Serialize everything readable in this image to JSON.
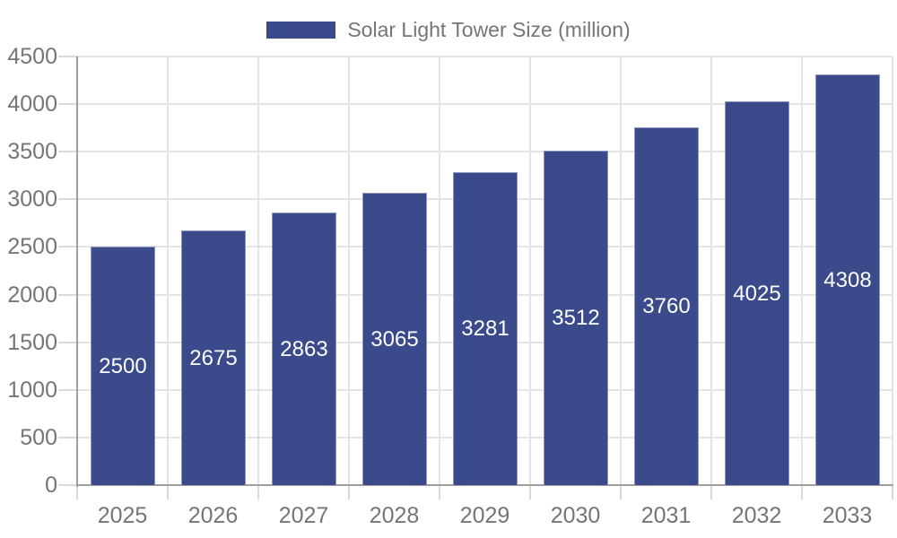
{
  "legend": {
    "items": [
      {
        "label": "Solar Light Tower Size (million)",
        "swatch_color": "#3A4A8B"
      }
    ]
  },
  "chart_data": {
    "type": "bar",
    "title": "",
    "xlabel": "",
    "ylabel": "",
    "categories": [
      "2025",
      "2026",
      "2027",
      "2028",
      "2029",
      "2030",
      "2031",
      "2032",
      "2033"
    ],
    "series": [
      {
        "name": "Solar Light Tower Size (million)",
        "values": [
          2500,
          2675,
          2863,
          3065,
          3281,
          3512,
          3760,
          4025,
          4308
        ],
        "color": "#3A4A8B"
      }
    ],
    "value_labels": {
      "visible": true,
      "position": "inside-center",
      "color": "#FFFFFF"
    },
    "ylim": [
      0,
      4500
    ],
    "ytick_interval": 500,
    "yticks": [
      0,
      500,
      1000,
      1500,
      2000,
      2500,
      3000,
      3500,
      4000,
      4500
    ],
    "grid": true,
    "legend_position": "top-center",
    "colors": {
      "bar": "#3A4A8B",
      "bar_border": "#8F96BA",
      "grid_line": "#E4E4E4",
      "axis_line": "#9E9E9E",
      "tick": "#D9D9D9",
      "axis_text": "#757575",
      "legend_text": "#757575",
      "value_text": "#FFFFFF",
      "background": "#FFFFFF"
    }
  }
}
